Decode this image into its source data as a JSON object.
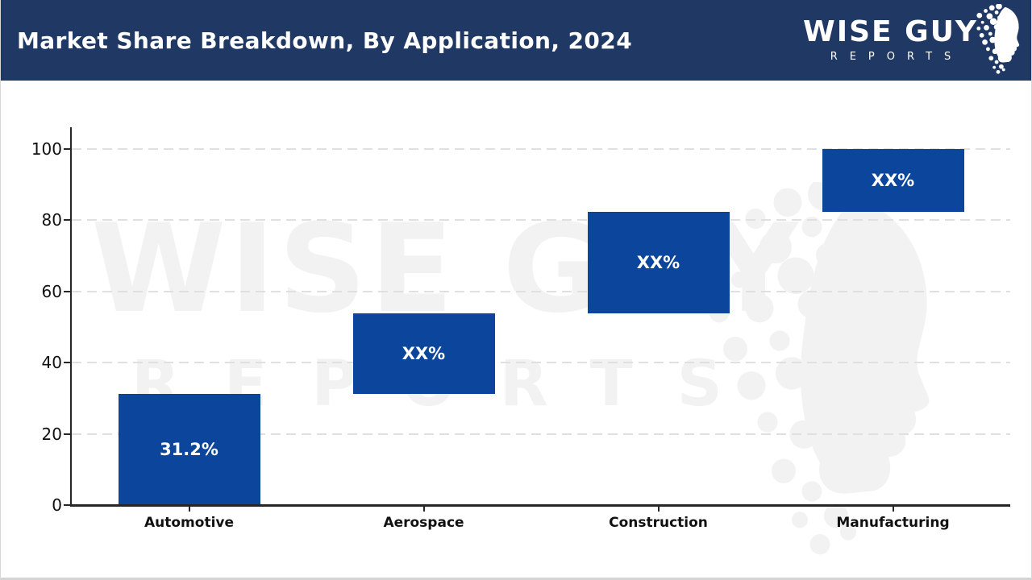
{
  "header": {
    "title": "Market Share Breakdown, By Application, 2024",
    "logo": {
      "line1": "WISE GUY",
      "line2": "REPORTS"
    }
  },
  "watermark": {
    "line1": "WISE GUY",
    "line2": "REPORTS"
  },
  "chart_data": {
    "type": "bar",
    "subtype": "waterfall",
    "title": "Market Share Breakdown, By Application, 2024",
    "categories": [
      "Automotive",
      "Aerospace",
      "Construction",
      "Manufacturing"
    ],
    "segments": [
      {
        "start": 0,
        "end": 31.2,
        "label": "31.2%"
      },
      {
        "start": 31.2,
        "end": 53.8,
        "label": "XX%"
      },
      {
        "start": 53.8,
        "end": 82.4,
        "label": "XX%"
      },
      {
        "start": 82.4,
        "end": 100,
        "label": "XX%"
      }
    ],
    "yticks": [
      0,
      20,
      40,
      60,
      80,
      100
    ],
    "ylim": [
      0,
      106
    ],
    "xlabel": "",
    "ylabel": "",
    "grid": "horizontal-dashed",
    "legend": "none"
  },
  "colors": {
    "header_bg": "#1F3864",
    "bar": "#0B459C",
    "bar_label": "#FFFFFF",
    "axis": "#262626",
    "grid": "#E0E0E0",
    "tick_text": "#111111",
    "watermark": "#F2F2F2"
  }
}
